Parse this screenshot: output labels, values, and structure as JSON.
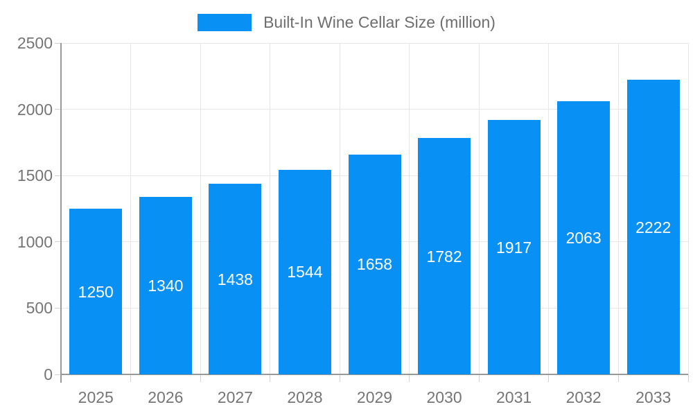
{
  "legend": {
    "label": "Built-In Wine Cellar Size (million)"
  },
  "chart_data": {
    "type": "bar",
    "title": "Built-In Wine Cellar Size (million)",
    "categories": [
      "2025",
      "2026",
      "2027",
      "2028",
      "2029",
      "2030",
      "2031",
      "2032",
      "2033"
    ],
    "values": [
      1250,
      1340,
      1438,
      1544,
      1658,
      1782,
      1917,
      2063,
      2222
    ],
    "xlabel": "",
    "ylabel": "",
    "ylim": [
      0,
      2500
    ],
    "yticks": [
      0,
      500,
      1000,
      1500,
      2000,
      2500
    ],
    "grid": true,
    "legend_position": "top",
    "colors": {
      "bar": "#0890f5",
      "value_label": "#ffffff",
      "axis_text": "#757575",
      "legend_text": "#6e6e6e",
      "gridline": "#e7e7e7",
      "tick": "#d2d2d2",
      "axis_line": "#999999",
      "background": "#ffffff"
    }
  }
}
